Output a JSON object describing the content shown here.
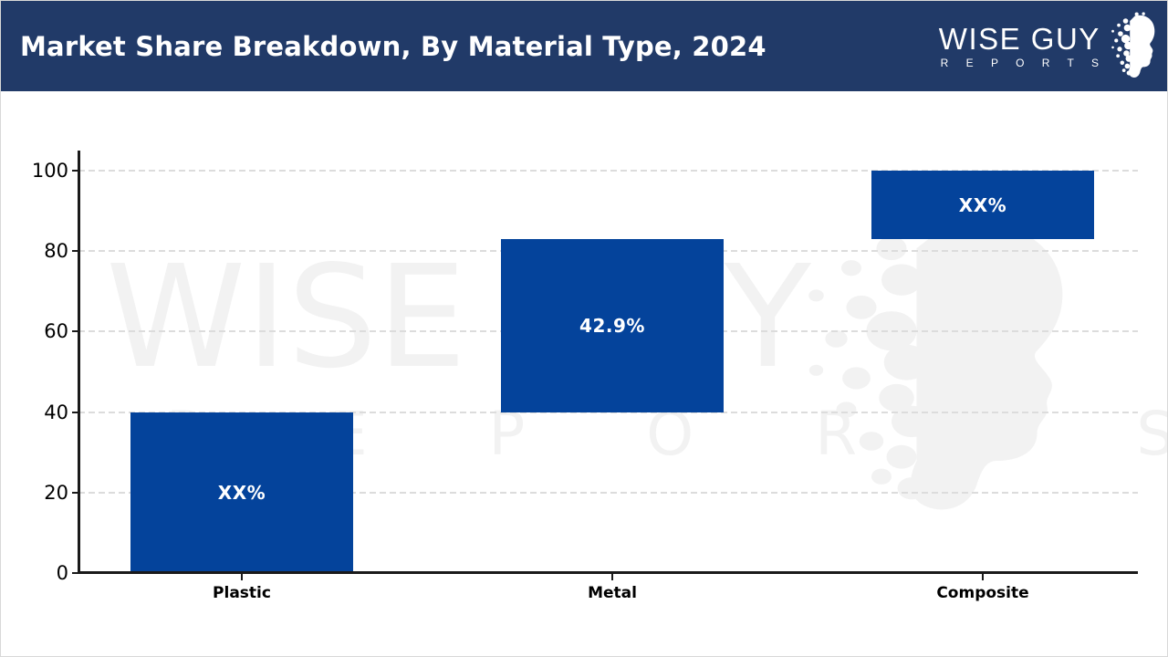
{
  "header": {
    "title": "Market Share Breakdown, By Material Type, 2024",
    "logo": {
      "wordmark": "WISE GUY",
      "subtext": "R E P O R T S",
      "head_icon": "dotted-face-profile"
    }
  },
  "watermark": {
    "wordmark": "WISE GUY",
    "subtext": "R E P O R T S",
    "head_icon": "dotted-face-profile"
  },
  "colors": {
    "header_bg": "#213a68",
    "title_text": "#ffffff",
    "bar_fill": "#04439b",
    "bar_label_text": "#ffffff",
    "gridline": "#dcdcdc",
    "axis": "#1a1a1a",
    "tick_text": "#000000",
    "watermark": "#f2f2f2",
    "page_border": "#d8d8d8"
  },
  "chart_data": {
    "type": "bar",
    "subtype": "waterfall",
    "title": "Market Share Breakdown, By Material Type, 2024",
    "xlabel": "",
    "ylabel": "",
    "categories": [
      "Plastic",
      "Metal",
      "Composite"
    ],
    "segments": [
      {
        "category": "Plastic",
        "start": 0,
        "end": 40,
        "value_label": "XX%"
      },
      {
        "category": "Metal",
        "start": 40,
        "end": 82.9,
        "value_label": "42.9%"
      },
      {
        "category": "Composite",
        "start": 82.9,
        "end": 100,
        "value_label": "XX%"
      }
    ],
    "yticks": [
      0,
      20,
      40,
      60,
      80,
      100
    ],
    "ylim": [
      0,
      105
    ],
    "grid": "horizontal-dashed",
    "legend": "none"
  }
}
